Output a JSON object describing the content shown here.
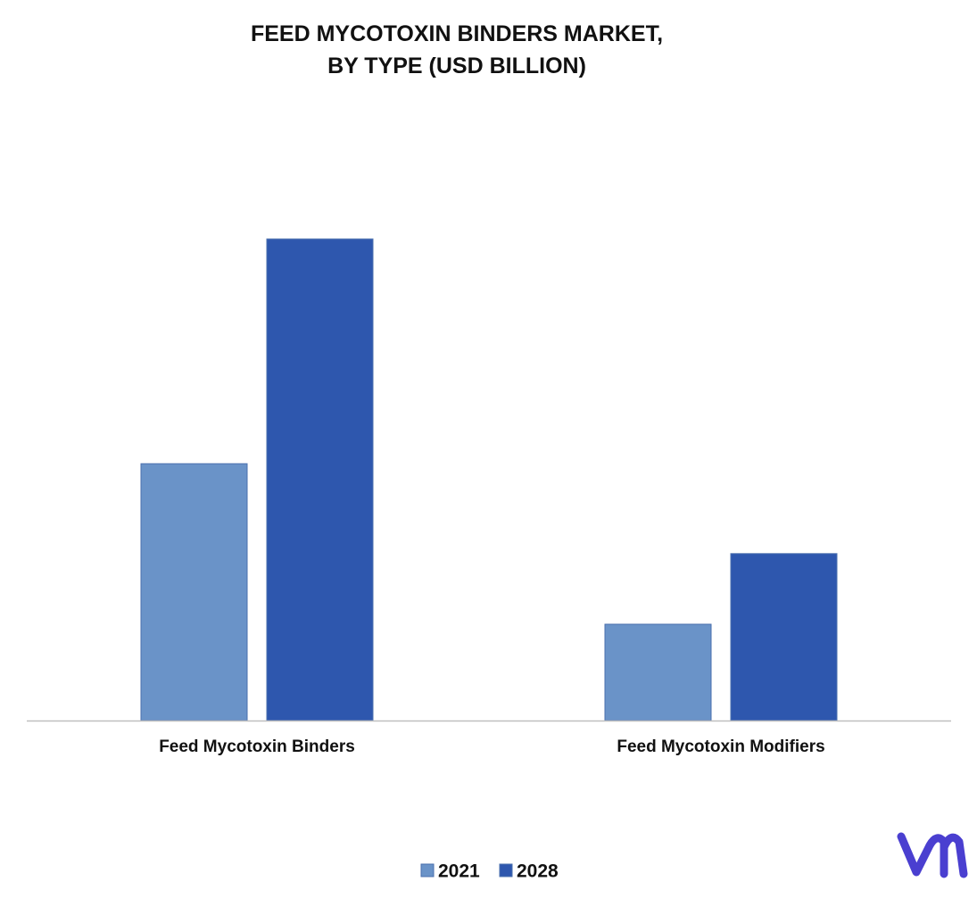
{
  "chart_data": {
    "type": "bar",
    "title": "FEED MYCOTOXIN BINDERS MARKET, BY TYPE (USD BILLION)",
    "categories": [
      "Feed Mycotoxin Binders",
      "Feed Mycotoxin Modifiers"
    ],
    "series": [
      {
        "name": "2021",
        "color": "#6a93c8",
        "values": [
          0.8,
          0.3
        ]
      },
      {
        "name": "2028",
        "color": "#2e57ae",
        "values": [
          1.5,
          0.52
        ]
      }
    ],
    "legend": "bottom"
  }
}
